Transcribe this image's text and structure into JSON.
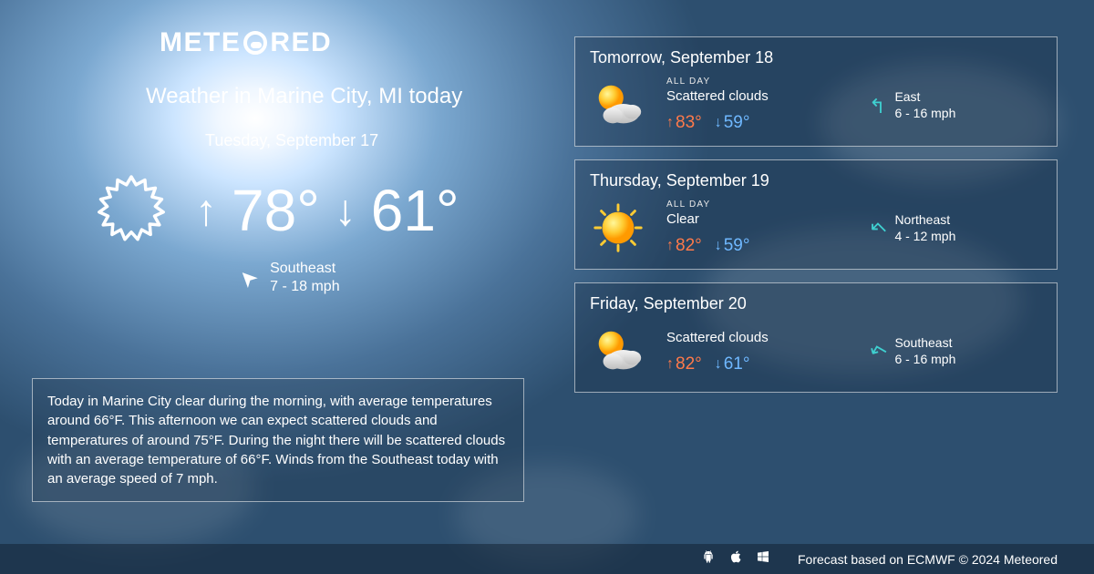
{
  "brand": "METEORED",
  "title": "Weather in Marine City, MI today",
  "today": {
    "date": "Tuesday, September 17",
    "high": "78°",
    "low": "61°",
    "wind_dir": "Southeast",
    "wind_speed": "7 - 18 mph",
    "wind_arrow_rotation": -45,
    "summary": "Today in Marine City clear during the morning, with average temperatures around 66°F. This afternoon we can expect scattered clouds and temperatures of around 75°F. During the night there will be scattered clouds with an average temperature of 66°F. Winds from the Southeast today with an average speed of 7 mph."
  },
  "forecast": [
    {
      "date": "Tomorrow, September 18",
      "all_day_label": "ALL DAY",
      "condition": "Scattered clouds",
      "icon": "partly-cloudy",
      "high": "83°",
      "low": "59°",
      "wind_dir": "East",
      "wind_speed": "6 - 16 mph",
      "wind_arrow_rotation": 180
    },
    {
      "date": "Thursday, September 19",
      "all_day_label": "ALL DAY",
      "condition": "Clear",
      "icon": "sunny",
      "high": "82°",
      "low": "59°",
      "wind_dir": "Northeast",
      "wind_speed": "4 - 12 mph",
      "wind_arrow_rotation": 135
    },
    {
      "date": "Friday, September 20",
      "all_day_label": "",
      "condition": "Scattered clouds",
      "icon": "partly-cloudy",
      "high": "82°",
      "low": "61°",
      "wind_dir": "Southeast",
      "wind_speed": "6 - 16 mph",
      "wind_arrow_rotation": 120
    }
  ],
  "footer": {
    "text": "Forecast based on ECMWF © 2024 Meteored"
  },
  "colors": {
    "high_temp": "#ff7a4a",
    "low_temp": "#6fb8ff",
    "wind_arrow": "#3fd0d0",
    "border": "rgba(255,255,255,0.55)"
  }
}
